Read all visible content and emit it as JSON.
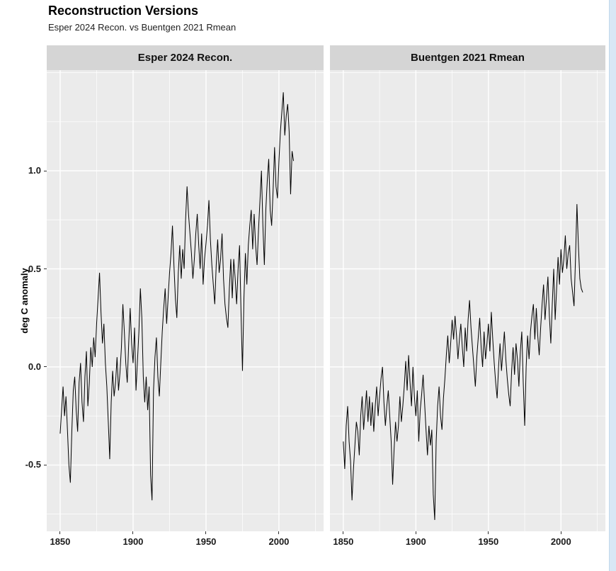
{
  "title": "Reconstruction Versions",
  "subtitle": "Esper 2024 Recon. vs Buentgen 2021 Rmean",
  "y_axis_title": "deg C anomaly",
  "colors": {
    "panel_background": "#ebebeb",
    "strip_background": "#d5d5d5",
    "grid_major": "#ffffff",
    "grid_minor": "#ffffff",
    "line": "#000000",
    "tick": "#333333",
    "scrollbar": "#d9e7f5"
  },
  "chart_data": {
    "type": "line",
    "title": "Reconstruction Versions",
    "subtitle": "Esper 2024 Recon. vs Buentgen 2021 Rmean",
    "ylabel": "deg C anomaly",
    "xlabel": "",
    "grid": true,
    "x_range": [
      1840.8,
      2030.6
    ],
    "y_range": [
      -0.838,
      1.513
    ],
    "x_ticks": [
      {
        "v": 1850,
        "label": "1850"
      },
      {
        "v": 1900,
        "label": "1900"
      },
      {
        "v": 1950,
        "label": "1950"
      },
      {
        "v": 2000,
        "label": "2000"
      }
    ],
    "y_ticks": [
      {
        "v": 1.0,
        "label": "1.0"
      },
      {
        "v": 0.5,
        "label": "0.5"
      },
      {
        "v": 0.0,
        "label": "0.0"
      },
      {
        "v": -0.5,
        "label": "-0.5"
      }
    ],
    "x_minor": [
      1875,
      1925,
      1975,
      2025
    ],
    "y_minor": [
      -0.75,
      -0.25,
      0.25,
      0.75,
      1.25,
      1.5
    ],
    "facets": [
      {
        "label": "Esper 2024 Recon.",
        "start_year": 1850,
        "values": [
          -0.34,
          -0.22,
          -0.1,
          -0.25,
          -0.15,
          -0.32,
          -0.5,
          -0.59,
          -0.33,
          -0.12,
          -0.05,
          -0.22,
          -0.33,
          -0.08,
          0.02,
          -0.18,
          -0.28,
          -0.05,
          0.08,
          -0.2,
          -0.08,
          0.1,
          0.0,
          0.15,
          0.05,
          0.22,
          0.35,
          0.48,
          0.28,
          0.12,
          0.22,
          0.02,
          -0.1,
          -0.28,
          -0.47,
          -0.18,
          -0.02,
          -0.15,
          -0.08,
          0.05,
          -0.12,
          -0.03,
          0.1,
          0.32,
          0.18,
          0.02,
          -0.08,
          0.12,
          0.3,
          0.12,
          0.02,
          0.2,
          -0.12,
          0.03,
          0.18,
          0.4,
          0.25,
          -0.05,
          -0.18,
          -0.05,
          -0.22,
          -0.1,
          -0.55,
          -0.68,
          -0.12,
          0.05,
          0.15,
          -0.05,
          -0.15,
          0.02,
          0.18,
          0.3,
          0.4,
          0.22,
          0.35,
          0.48,
          0.58,
          0.72,
          0.52,
          0.35,
          0.25,
          0.48,
          0.62,
          0.45,
          0.6,
          0.5,
          0.75,
          0.92,
          0.78,
          0.68,
          0.58,
          0.45,
          0.55,
          0.68,
          0.78,
          0.62,
          0.5,
          0.68,
          0.42,
          0.55,
          0.63,
          0.72,
          0.85,
          0.65,
          0.52,
          0.42,
          0.32,
          0.52,
          0.65,
          0.48,
          0.55,
          0.68,
          0.45,
          0.32,
          0.25,
          0.2,
          0.4,
          0.55,
          0.35,
          0.55,
          0.45,
          0.32,
          0.5,
          0.62,
          0.28,
          -0.02,
          0.35,
          0.58,
          0.42,
          0.62,
          0.72,
          0.8,
          0.6,
          0.78,
          0.62,
          0.52,
          0.7,
          0.85,
          1.0,
          0.72,
          0.52,
          0.8,
          0.95,
          1.06,
          0.8,
          0.72,
          0.9,
          1.12,
          0.92,
          0.86,
          1.05,
          1.2,
          1.3,
          1.4,
          1.18,
          1.28,
          1.34,
          1.2,
          0.88,
          1.1,
          1.05
        ]
      },
      {
        "label": "Buentgen 2021 Rmean",
        "start_year": 1850,
        "values": [
          -0.38,
          -0.52,
          -0.3,
          -0.2,
          -0.38,
          -0.48,
          -0.68,
          -0.52,
          -0.4,
          -0.28,
          -0.33,
          -0.45,
          -0.25,
          -0.15,
          -0.32,
          -0.22,
          -0.12,
          -0.28,
          -0.15,
          -0.3,
          -0.18,
          -0.33,
          -0.2,
          -0.1,
          -0.25,
          -0.15,
          -0.06,
          0.0,
          -0.18,
          -0.3,
          -0.2,
          -0.12,
          -0.25,
          -0.38,
          -0.6,
          -0.42,
          -0.28,
          -0.38,
          -0.3,
          -0.15,
          -0.28,
          -0.2,
          -0.1,
          0.03,
          -0.12,
          0.06,
          -0.08,
          -0.2,
          0.0,
          -0.15,
          -0.25,
          -0.12,
          -0.38,
          -0.22,
          -0.14,
          -0.04,
          -0.18,
          -0.32,
          -0.45,
          -0.3,
          -0.4,
          -0.32,
          -0.65,
          -0.78,
          -0.38,
          -0.2,
          -0.1,
          -0.25,
          -0.32,
          -0.16,
          -0.06,
          0.06,
          0.16,
          0.02,
          0.12,
          0.24,
          0.14,
          0.26,
          0.16,
          0.04,
          0.14,
          0.22,
          0.1,
          0.0,
          0.2,
          0.08,
          0.24,
          0.34,
          0.2,
          0.1,
          0.0,
          -0.1,
          0.05,
          0.15,
          0.25,
          0.1,
          0.0,
          0.18,
          0.04,
          0.12,
          0.22,
          0.08,
          0.28,
          0.14,
          0.02,
          -0.08,
          -0.16,
          0.0,
          0.12,
          -0.02,
          0.08,
          0.18,
          0.04,
          -0.06,
          -0.14,
          -0.2,
          -0.02,
          0.1,
          -0.04,
          0.12,
          0.04,
          -0.1,
          0.08,
          0.18,
          -0.08,
          -0.3,
          0.0,
          0.16,
          0.04,
          0.18,
          0.26,
          0.32,
          0.14,
          0.3,
          0.16,
          0.06,
          0.2,
          0.32,
          0.42,
          0.24,
          0.35,
          0.46,
          0.26,
          0.12,
          0.32,
          0.5,
          0.24,
          0.4,
          0.56,
          0.42,
          0.6,
          0.48,
          0.55,
          0.67,
          0.5,
          0.58,
          0.62,
          0.45,
          0.38,
          0.31,
          0.55,
          0.83,
          0.62,
          0.45,
          0.4,
          0.38
        ]
      }
    ]
  }
}
